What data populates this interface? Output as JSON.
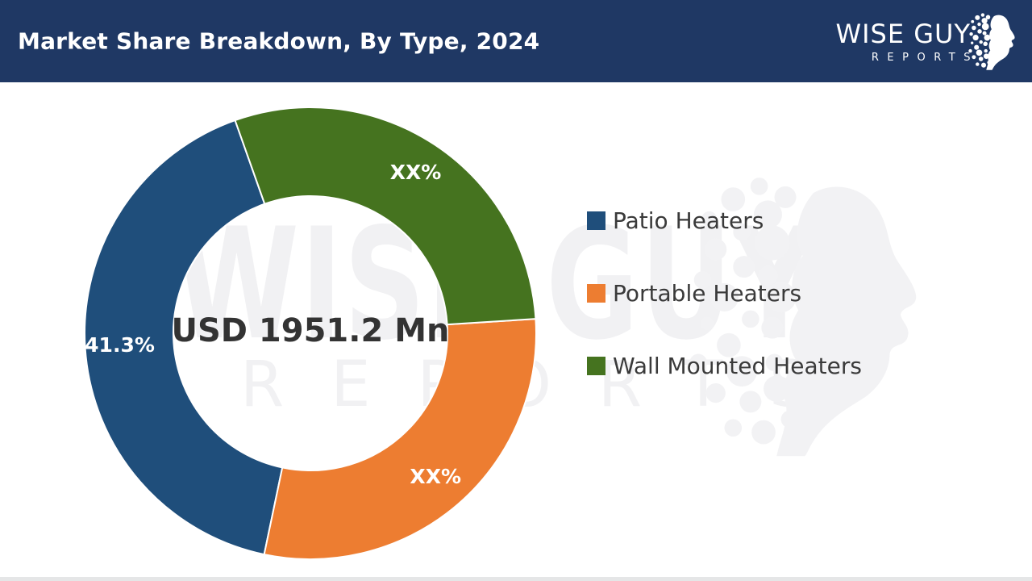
{
  "header": {
    "title": "Market Share Breakdown, By Type, 2024",
    "background_color": "#1F3864",
    "logo": {
      "line1": "WISE GUY",
      "line2": "REPORTS"
    }
  },
  "watermark": {
    "line1": "WISE GUY",
    "line2": "REPORTS",
    "color": "#f1f1f3"
  },
  "chart_data": {
    "type": "pie",
    "subtype": "donut",
    "title": "Market Share Breakdown, By Type, 2024",
    "center_label": "USD 1951.2 Mn",
    "categories": [
      "Patio Heaters",
      "Portable Heaters",
      "Wall Mounted Heaters"
    ],
    "values": [
      41.3,
      29.3,
      29.4
    ],
    "displayed_labels": [
      "41.3%",
      "XX%",
      "XX%"
    ],
    "colors": [
      "#1F4E7B",
      "#ED7D31",
      "#45731F"
    ],
    "start_angle": 109.5,
    "direction": "counterclockwise",
    "legend_position": "right",
    "text_color": "#333333"
  },
  "footer": {
    "strip_color": "#e5e6e7"
  }
}
